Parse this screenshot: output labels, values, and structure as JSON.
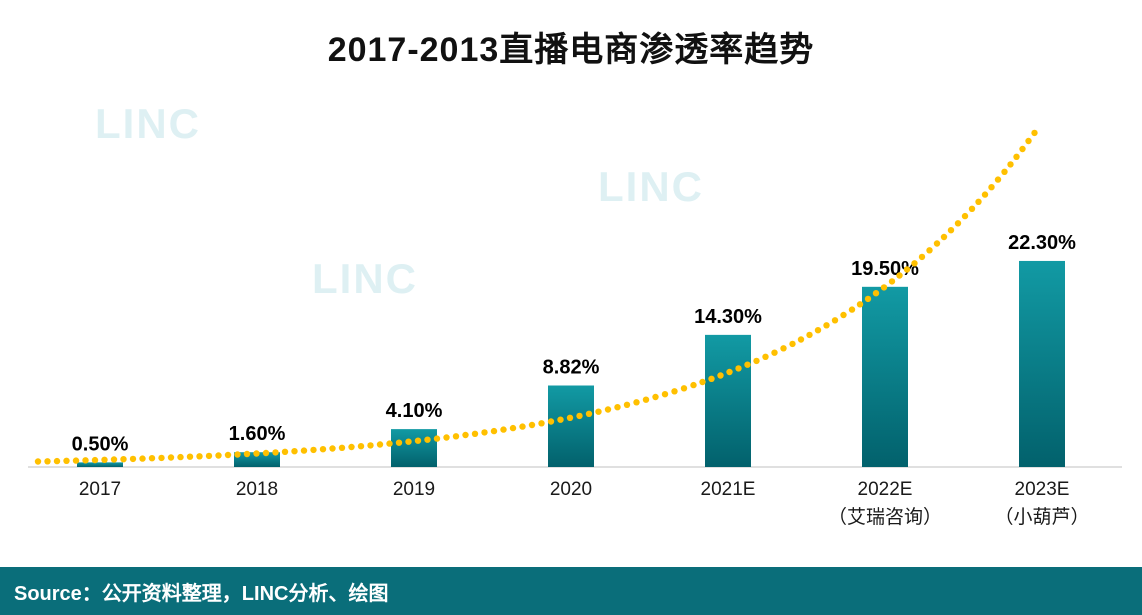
{
  "title": "2017-2013直播电商渗透率趋势",
  "watermark": "LINC",
  "source_bar": {
    "text": "Source：公开资料整理，LINC分析、绘图"
  },
  "chart_data": {
    "type": "bar",
    "title": "2017-2013直播电商渗透率趋势",
    "categories": [
      "2017",
      "2018",
      "2019",
      "2020",
      "2021E",
      "2022E",
      "2023E"
    ],
    "category_sublabels": [
      "",
      "",
      "",
      "",
      "",
      "（艾瑞咨询）",
      "（小葫芦）"
    ],
    "values": [
      0.5,
      1.6,
      4.1,
      8.82,
      14.3,
      19.5,
      22.3
    ],
    "value_labels": [
      "0.50%",
      "1.60%",
      "4.10%",
      "8.82%",
      "14.30%",
      "19.50%",
      "22.30%"
    ],
    "xlabel": "",
    "ylabel": "",
    "ylim": [
      0,
      24
    ],
    "grid": false,
    "legend": "none",
    "trendline": "exponential dotted curve rising above last bar",
    "colors": {
      "bar_top": "#129AA4",
      "bar_bottom": "#02616C",
      "trend_dot": "#FFC000",
      "axis": "#D6D6D6",
      "label_text": "#000000",
      "source_bar_bg": "#0A6E7A",
      "watermark": "#DEF0F3"
    }
  }
}
